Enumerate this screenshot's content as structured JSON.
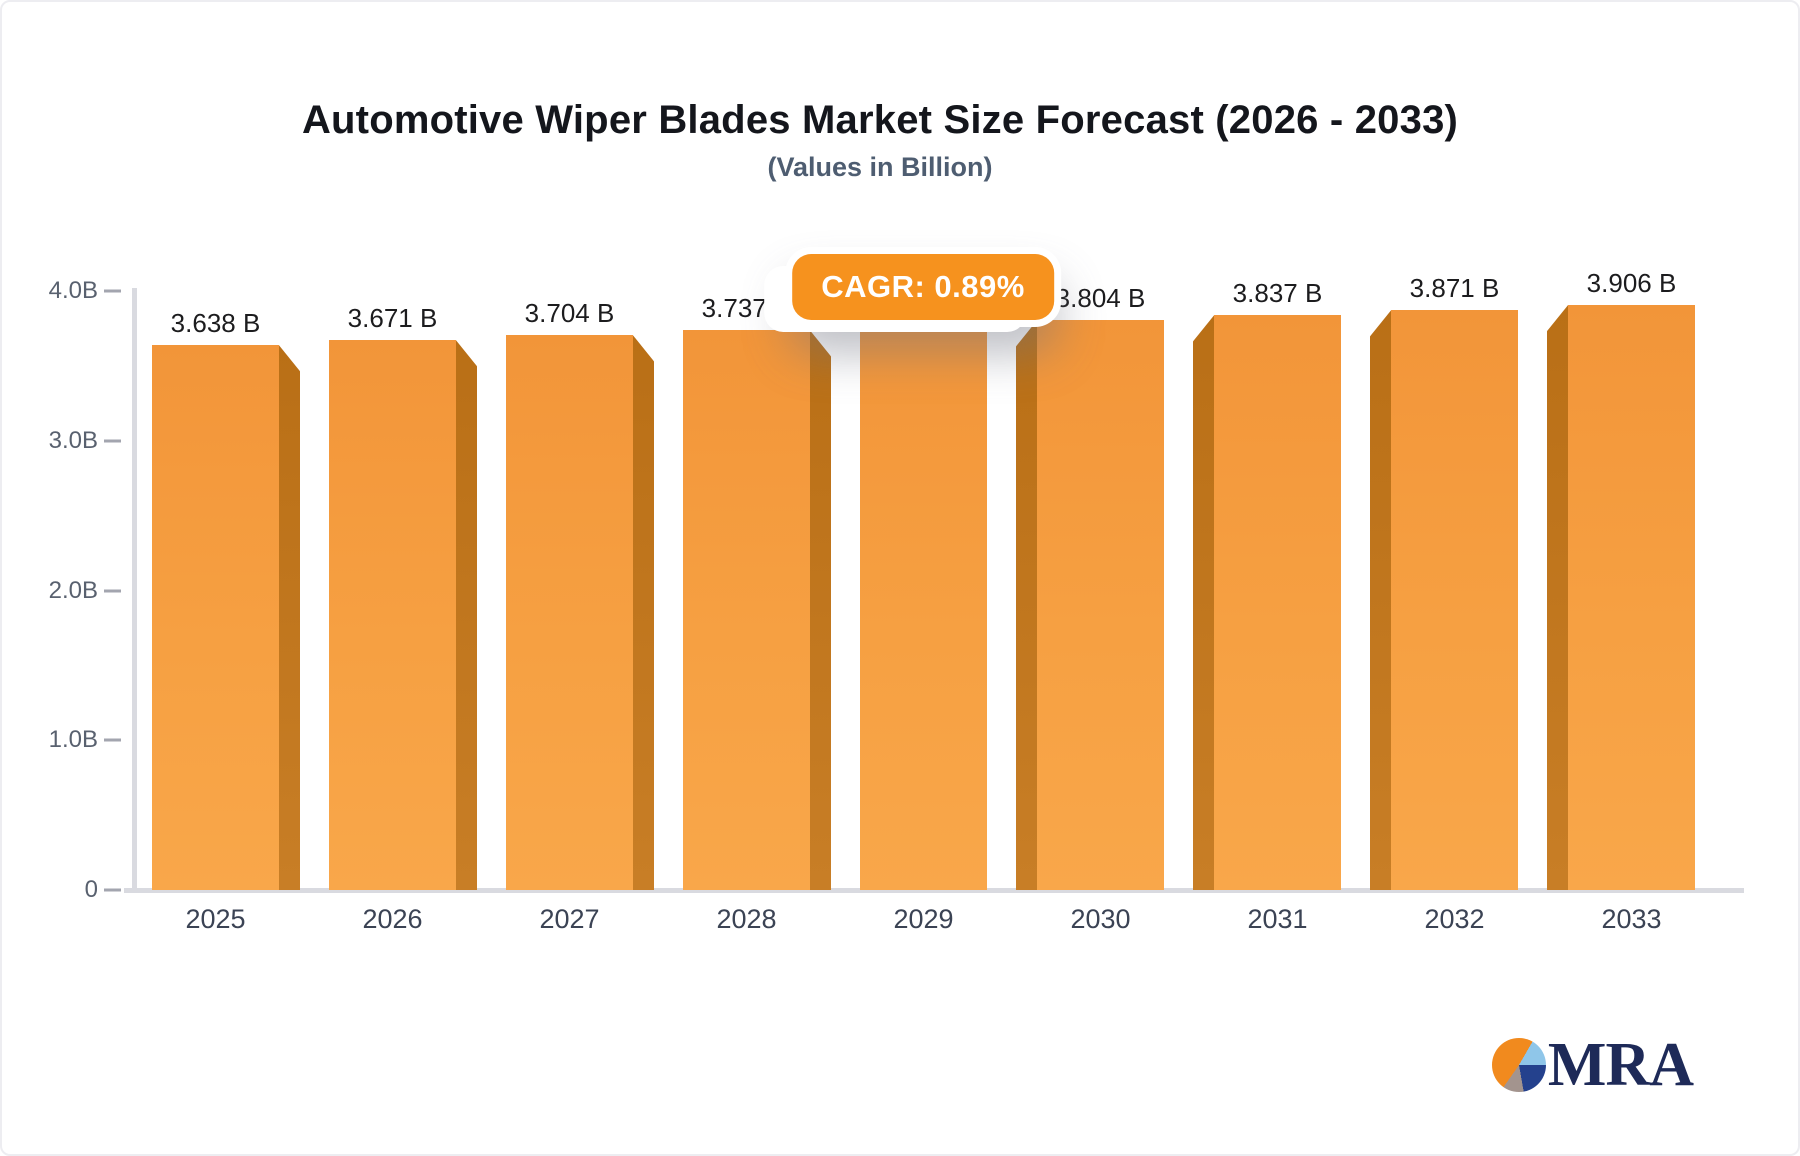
{
  "header": {
    "title": "Automotive Wiper Blades Market Size Forecast (2026 - 2033)",
    "subtitle": "(Values in Billion)"
  },
  "badge": {
    "label": "CAGR: 0.89%"
  },
  "brand": {
    "name": "MRA"
  },
  "chart_data": {
    "type": "bar",
    "title": "Automotive Wiper Blades Market Size Forecast (2026 - 2033)",
    "subtitle": "(Values in Billion)",
    "categories": [
      "2025",
      "2026",
      "2027",
      "2028",
      "2029",
      "2030",
      "2031",
      "2032",
      "2033"
    ],
    "values": [
      3.638,
      3.671,
      3.704,
      3.737,
      3.771,
      3.804,
      3.837,
      3.871,
      3.906
    ],
    "bar_labels": [
      "3.638 B",
      "3.671 B",
      "3.704 B",
      "3.737 B",
      "",
      "3.804 B",
      "3.837 B",
      "3.871 B",
      "3.906 B"
    ],
    "annotation": "CAGR: 0.89%",
    "xlabel": "",
    "ylabel": "",
    "y_ticks": [
      {
        "label": "4.0B",
        "value": 4.0
      },
      {
        "label": "3.0B",
        "value": 3.0
      },
      {
        "label": "2.0B",
        "value": 2.0
      },
      {
        "label": "1.0B",
        "value": 1.0
      },
      {
        "label": "0",
        "value": 0.0
      }
    ],
    "ylim": [
      0,
      4
    ],
    "grid": false,
    "legend": false,
    "colors": {
      "bar_face": "#F6A042",
      "bar_side": "#C07518",
      "badge_background": "#F6921E",
      "badge_text": "#FFFFFF",
      "axis": "#D9DAE0",
      "title_text": "#14161C",
      "subtitle_text": "#4E5D71",
      "tick_text": "#59616F",
      "category_text": "#3B4354",
      "value_label_text": "#1C1C1E",
      "brand_navy": "#1E2A58",
      "brand_orange": "#F18A1E",
      "brand_lightblue": "#8FC6E9"
    }
  }
}
